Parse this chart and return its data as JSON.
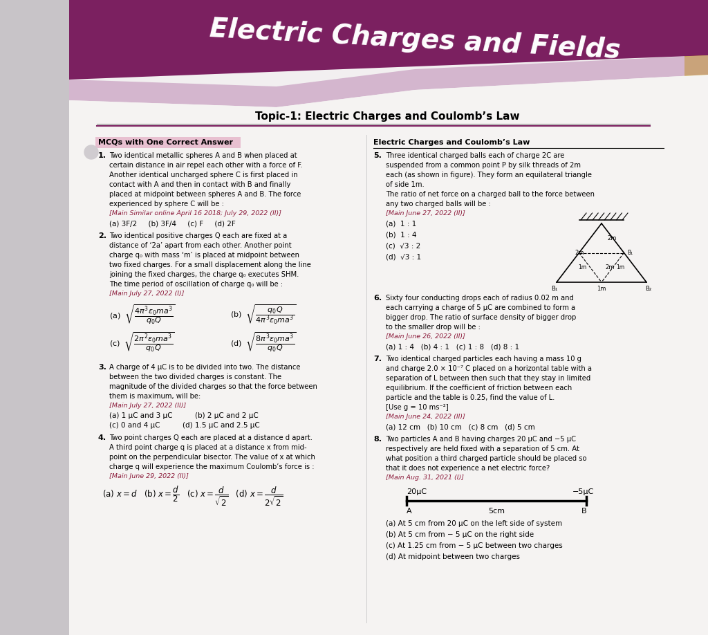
{
  "title": "Electric Charges and Fields",
  "topic": "Topic-1: Electric Charges and Coulomb’s Law",
  "header_bg": "#7B2060",
  "header_text_color": "#FFFFFF",
  "page_bg": "#D8D4D8",
  "body_bg": "#F5F3F2",
  "accent_color": "#8B1A3A",
  "spine_color": "#C8C4C8",
  "yellow_color": "#E8D030",
  "wave_color": "#C090B8",
  "section_header": "MCQs with One Correct Answer",
  "right_section_header": "Electric Charges and Coulomb’s Law",
  "q1_text": "Two identical metallic spheres A and B when placed at\ncertain distance in air repel each other with a force of F.\nAnother identical uncharged sphere C is first placed in\ncontact with A and then in contact with B and finally\nplaced at midpoint between spheres A and B. The force\nexperienced by sphere C will be :",
  "q1_ref": "[Main Similar online April 16 2018; July 29, 2022 (II)]",
  "q1_opts": [
    "(a) 3F/2",
    "(b) 3F/4",
    "(c) F",
    "(d) 2F"
  ],
  "q2_text": "Two identical positive charges Q each are fixed at a\ndistance of ‘2a’ apart from each other. Another point\ncharge q₀ with mass ‘m’ is placed at midpoint between\ntwo fixed charges. For a small displacement along the line\njoining the fixed charges, the charge q₀ executes SHM.\nThe time period of oscillation of charge q₀ will be :",
  "q2_ref": "[Main July 27, 2022 (I)]",
  "q3_text": "A charge of 4 μC is to be divided into two. The distance\nbetween the two divided charges is constant. The\nmagnitude of the divided charges so that the force between\nthem is maximum, will be:",
  "q3_ref": "[Main July 27, 2022 (II)]",
  "q3_opts": [
    "(a) 1 μC and 3 μC",
    "(b) 2 μC and 2 μC",
    "(c) 0 and 4 μC",
    "(d) 1.5 μC and 2.5 μC"
  ],
  "q4_text": "Two point charges Q each are placed at a distance d apart.\nA third point charge q is placed at a distance x from mid-\npoint on the perpendicular bisector. The value of x at which\ncharge q will experience the maximum Coulomb’s force is :",
  "q4_ref": "[Main June 29, 2022 (II)]",
  "q5_text": "Three identical charged balls each of charge 2C are\nsuspended from a common point P by silk threads of 2m\neach (as shown in figure). They form an equilateral triangle\nof side 1m.\nThe ratio of net force on a charged ball to the force between\nany two charged balls will be :",
  "q5_ref": "[Main June 27, 2022 (II)]",
  "q5_opts": [
    "(a)  1 : 1",
    "(b)  1 : 4",
    "(c)  √3 : 2",
    "(d)  √3 : 1"
  ],
  "q6_text": "Sixty four conducting drops each of radius 0.02 m and\neach carrying a charge of 5 μC are combined to form a\nbigger drop. The ratio of surface density of bigger drop\nto the smaller drop will be :",
  "q6_ref": "[Main June 26, 2022 (II)]",
  "q6_opts": [
    "(a) 1 : 4",
    "(b) 4 : 1",
    "(c) 1 : 8",
    "(d) 8 : 1"
  ],
  "q7_text": "Two identical charged particles each having a mass 10 g\nand charge 2.0 × 10⁻⁷ C placed on a horizontal table with a\nseparation of L between then such that they stay in limited\nequilibrium. If the coefficient of friction between each\nparticle and the table is 0.25, find the value of L.\n[Use g = 10 ms⁻²]",
  "q7_ref": "[Main June 24, 2022 (II)]",
  "q7_opts": [
    "(a) 12 cm",
    "(b) 10 cm",
    "(c) 8 cm",
    "(d) 5 cm"
  ],
  "q8_text": "Two particles A and B having charges 20 μC and −5 μC\nrespectively are held fixed with a separation of 5 cm. At\nwhat position a third charged particle should be placed so\nthat it does not experience a net electric force?",
  "q8_ref": "[Main Aug. 31, 2021 (I)]",
  "q8_opts": [
    "(a) At 5 cm from 20 μC on the left side of system",
    "(b) At 5 cm from − 5 μC on the right side",
    "(c) At 1.25 cm from − 5 μC between two charges",
    "(d) At midpoint between two charges"
  ]
}
